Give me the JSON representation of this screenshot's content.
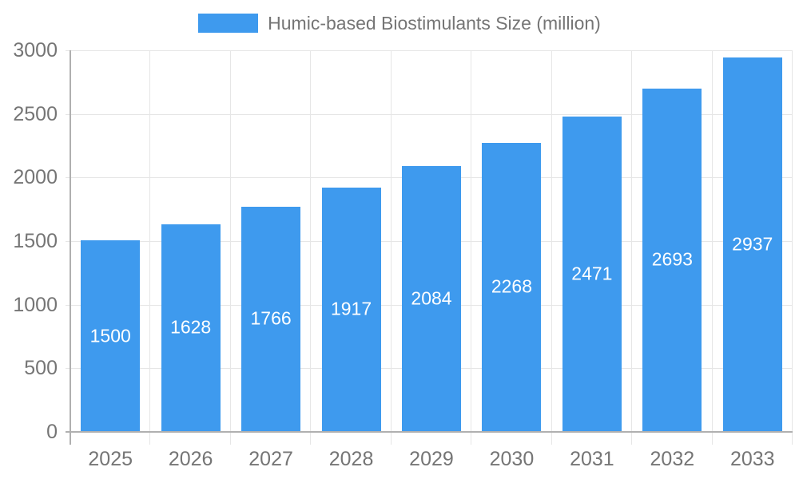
{
  "chart_data": {
    "type": "bar",
    "title": "Humic-based Biostimulants Size (million)",
    "legend": {
      "position": "top",
      "entries": [
        "Humic-based Biostimulants Size (million)"
      ]
    },
    "categories": [
      "2025",
      "2026",
      "2027",
      "2028",
      "2029",
      "2030",
      "2031",
      "2032",
      "2033"
    ],
    "series": [
      {
        "name": "Humic-based Biostimulants Size (million)",
        "values": [
          1500,
          1628,
          1766,
          1917,
          2084,
          2268,
          2471,
          2693,
          2937
        ]
      }
    ],
    "value_labels_visible": true,
    "xlabel": "",
    "ylabel": "",
    "ylim": [
      0,
      3000
    ],
    "y_ticks": [
      0,
      500,
      1000,
      1500,
      2000,
      2500,
      3000
    ],
    "grid": true,
    "colors": {
      "bar": "#3E9AEE",
      "bar_value_text": "#FFFFFF",
      "axis_text": "#757575",
      "gridline": "#E6E6E6",
      "axis_line": "#B0B0B0",
      "background": "#FFFFFF"
    }
  }
}
